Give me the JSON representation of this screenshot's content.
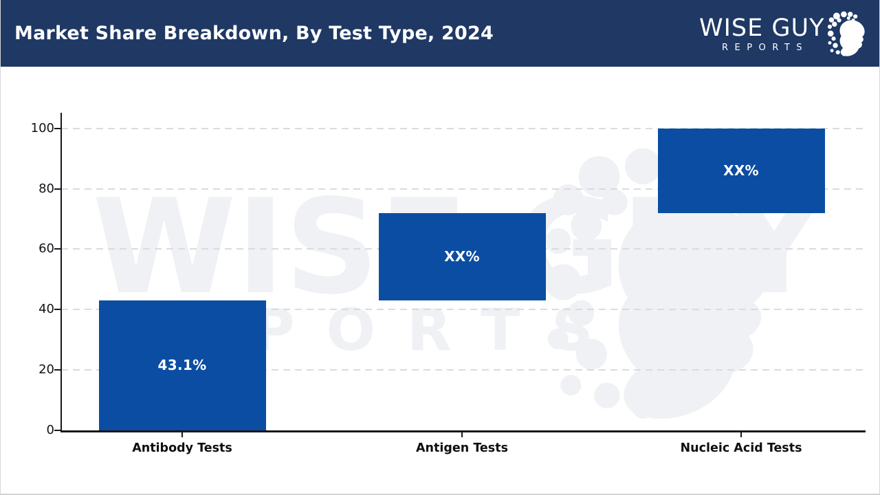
{
  "header": {
    "title": "Market Share Breakdown, By Test Type, 2024",
    "logo": {
      "line1": "WISE GUY",
      "line2": "REPORTS"
    }
  },
  "watermark": {
    "line1": "WISE GUY",
    "line2": "REPORTS"
  },
  "chart_data": {
    "type": "bar",
    "subtype": "waterfall-stacked",
    "title": "Market Share Breakdown, By Test Type, 2024",
    "categories": [
      "Antibody Tests",
      "Antigen Tests",
      "Nucleic Acid Tests"
    ],
    "segments": [
      {
        "category": "Antibody Tests",
        "start": 0,
        "end": 43.1,
        "label": "43.1%"
      },
      {
        "category": "Antigen Tests",
        "start": 43.1,
        "end": 72.0,
        "label": "XX%"
      },
      {
        "category": "Nucleic Acid Tests",
        "start": 72.0,
        "end": 100,
        "label": "XX%"
      }
    ],
    "yticks": [
      0,
      20,
      40,
      60,
      80,
      100
    ],
    "ylim": [
      0,
      100
    ],
    "xlabel": "",
    "ylabel": "",
    "grid": "dashed-horizontal",
    "legend": "none",
    "bar_color": "#0b4da2",
    "bar_label_color": "#ffffff"
  },
  "colors": {
    "header_bg": "#1f3864",
    "bar": "#0b4da2",
    "gridline": "#d9dbdd",
    "axis": "#15181c",
    "watermark": "#eff1f4",
    "page_bg": "#ffffff"
  }
}
